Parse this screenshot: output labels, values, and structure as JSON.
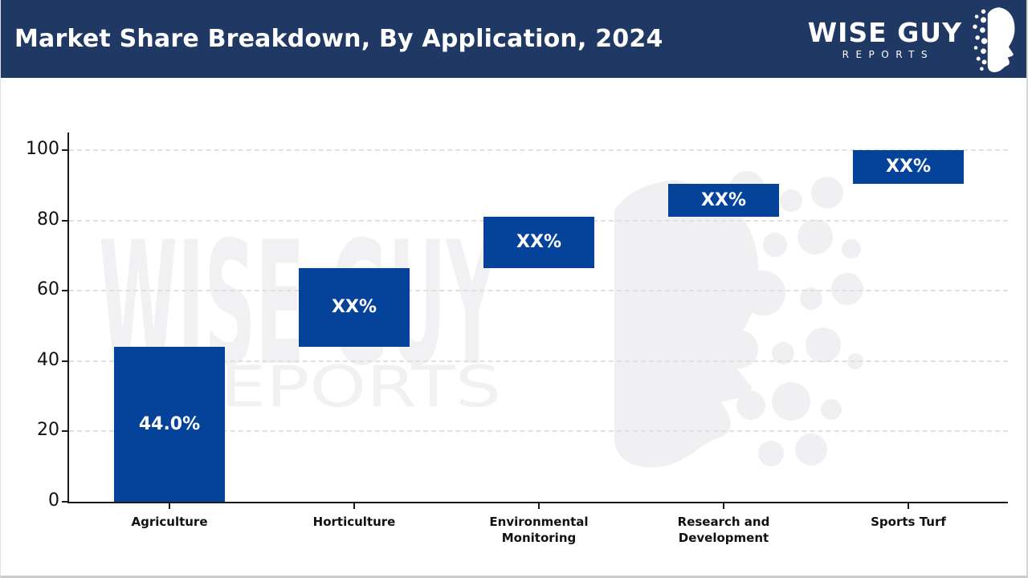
{
  "header": {
    "title": "Market Share Breakdown, By Application, 2024",
    "background_color": "#1f3864",
    "logo": {
      "line1": "WISE GUY",
      "line2": "REPORTS"
    }
  },
  "watermark": {
    "line1": "WISE GUY",
    "line2": "REPORTS"
  },
  "chart_data": {
    "type": "bar",
    "variant": "waterfall",
    "title": "Market Share Breakdown, By Application, 2024",
    "categories": [
      "Agriculture",
      "Horticulture",
      "Environmental Monitoring",
      "Research and Development",
      "Sports Turf"
    ],
    "category_label_lines": [
      [
        "Agriculture"
      ],
      [
        "Horticulture"
      ],
      [
        "Environmental",
        "Monitoring"
      ],
      [
        "Research and",
        "Development"
      ],
      [
        "Sports Turf"
      ]
    ],
    "series": [
      {
        "name": "Market share (%)",
        "segments": [
          {
            "category": "Agriculture",
            "start": 0,
            "end": 44.0,
            "value": 44.0,
            "label": "44.0%"
          },
          {
            "category": "Horticulture",
            "start": 44.0,
            "end": 66.5,
            "value": 22.5,
            "label": "XX%"
          },
          {
            "category": "Environmental Monitoring",
            "start": 66.5,
            "end": 81.0,
            "value": 14.5,
            "label": "XX%"
          },
          {
            "category": "Research and Development",
            "start": 81.0,
            "end": 90.5,
            "value": 9.5,
            "label": "XX%"
          },
          {
            "category": "Sports Turf",
            "start": 90.5,
            "end": 100.0,
            "value": 9.5,
            "label": "XX%"
          }
        ]
      }
    ],
    "yticks": [
      0,
      20,
      40,
      60,
      80,
      100
    ],
    "ylim": [
      0,
      105
    ],
    "grid": "horizontal-dashed",
    "legend": "none",
    "xlabel": "",
    "ylabel": "",
    "bar_color": "#05439b",
    "bar_label_color": "#ffffff",
    "axis_color": "#1a1a1a",
    "gridline_color": "#e0e0e0"
  }
}
